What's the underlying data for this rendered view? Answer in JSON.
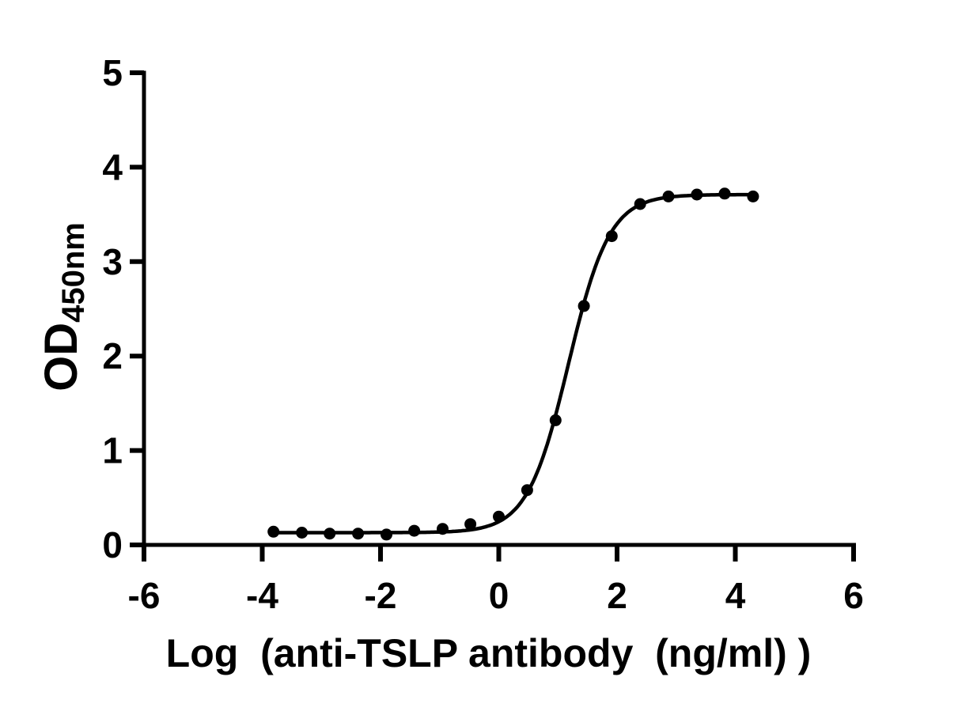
{
  "figure": {
    "background": "#ffffff"
  },
  "chart_data": {
    "type": "scatter",
    "title": "",
    "xlabel": "Log  (anti-TSLP antibody  (ng/ml) )",
    "ylabel_main": "OD",
    "ylabel_subscript": "450nm",
    "xlim": [
      -6,
      6
    ],
    "ylim": [
      0,
      5
    ],
    "x_ticks": [
      -6,
      -4,
      -2,
      0,
      2,
      4,
      6
    ],
    "y_ticks": [
      0,
      1,
      2,
      3,
      4,
      5
    ],
    "grid": false,
    "legend": "none",
    "axis_color": "#000000",
    "series": [
      {
        "name": "anti-TSLP antibody",
        "marker": "circle",
        "color": "#000000",
        "x": [
          -3.81,
          -3.33,
          -2.86,
          -2.38,
          -1.9,
          -1.43,
          -0.95,
          -0.48,
          0.0,
          0.48,
          0.96,
          1.44,
          1.91,
          2.39,
          2.87,
          3.35,
          3.82,
          4.3
        ],
        "y": [
          0.14,
          0.13,
          0.12,
          0.12,
          0.11,
          0.15,
          0.17,
          0.22,
          0.3,
          0.58,
          1.32,
          2.53,
          3.27,
          3.61,
          3.69,
          3.71,
          3.72,
          3.69
        ]
      }
    ],
    "curve_fit": {
      "model": "4PL-sigmoid",
      "bottom": 0.13,
      "top": 3.71,
      "log_ec50": 1.18,
      "hill": 1.25,
      "x_start": -3.81,
      "x_end": 4.3
    }
  }
}
